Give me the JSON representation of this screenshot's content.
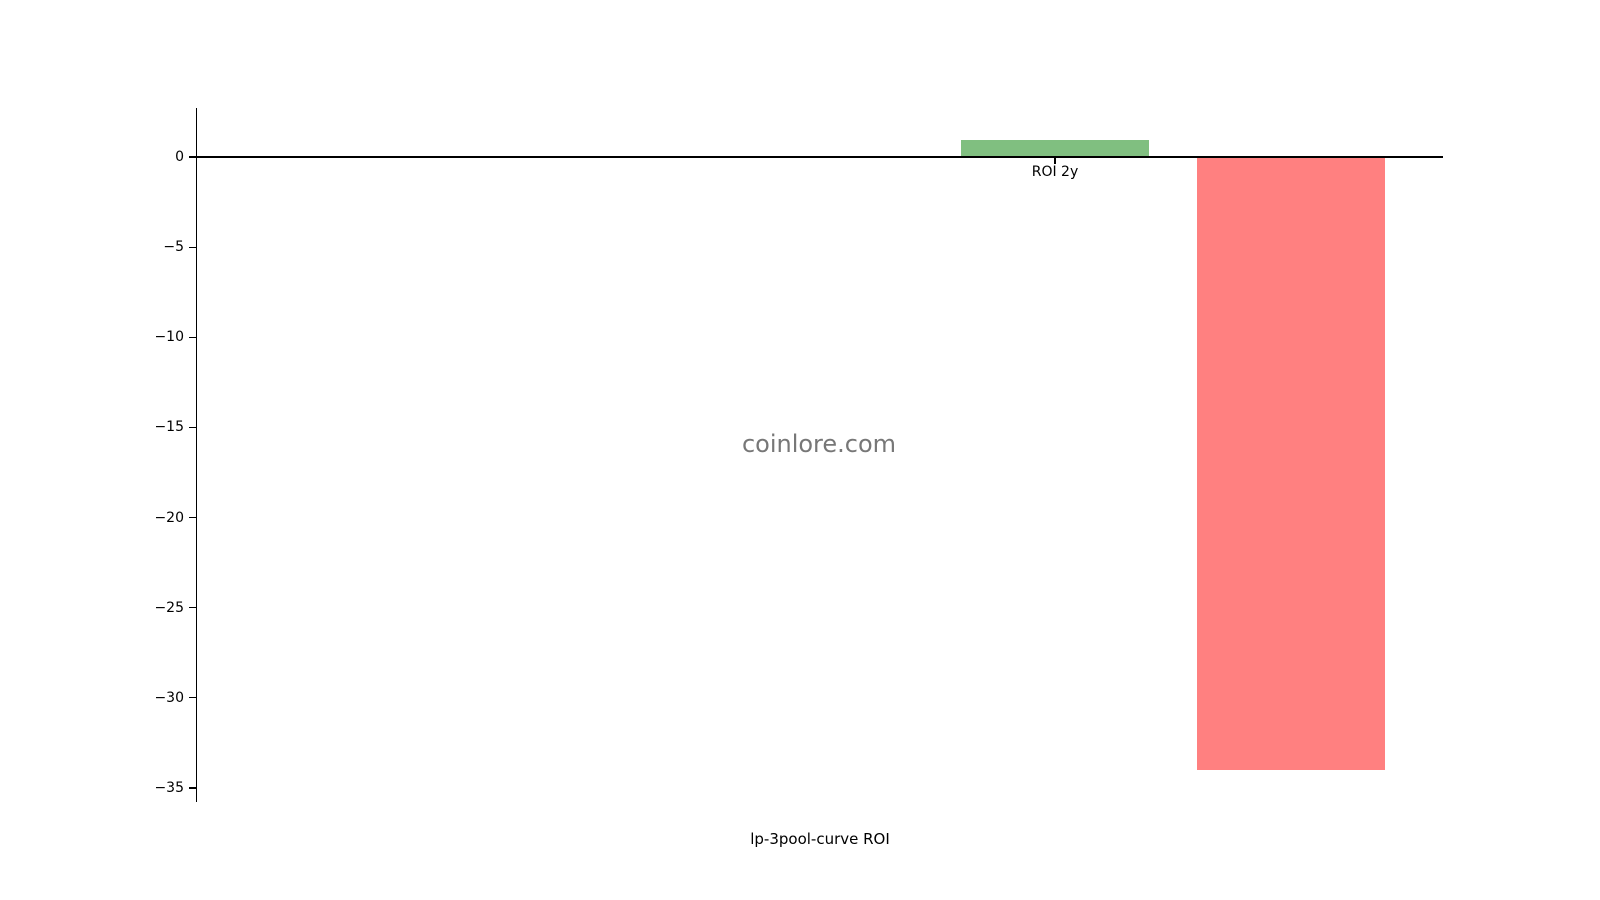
{
  "page": {
    "background_color": "#ffffff"
  },
  "chart_data": {
    "type": "bar",
    "title": "lp-3pool-curve ROI",
    "title_position": "bottom-center",
    "watermark": "coinlore.com",
    "watermark_color": "#777777",
    "categories": [
      "ROI 2y",
      ""
    ],
    "values": [
      0.97,
      -34.03
    ],
    "series": [
      {
        "name": "ROI",
        "values": [
          0.97,
          -34.03
        ]
      }
    ],
    "bar_colors": [
      "#80bf80",
      "#ff8080"
    ],
    "xtick_labels": [
      "ROI 2y",
      ""
    ],
    "yticks": [
      0,
      -5,
      -10,
      -15,
      -20,
      -25,
      -30,
      -35
    ],
    "ylim": [
      -35.78,
      2.72
    ],
    "xlabel": "",
    "ylabel": "",
    "grid": false,
    "legend": "none",
    "axis_color": "#000000",
    "text_color": "#000000",
    "minus_glyph": "−"
  }
}
